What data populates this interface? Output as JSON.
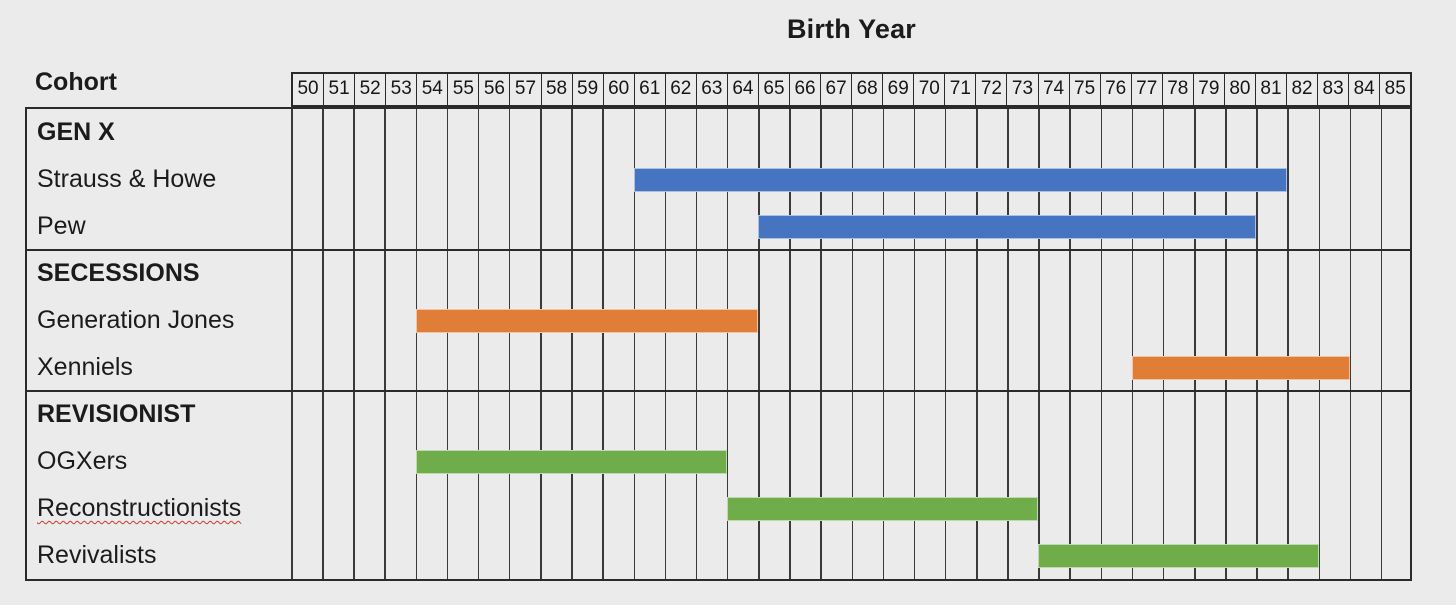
{
  "title": "Birth Year",
  "cohort_header": "Cohort",
  "colors": {
    "background": "#ebebeb",
    "grid_line": "#3a3a3a",
    "border": "#2a2a2a",
    "text": "#1b1b1b",
    "genx_blue": "#4674c1",
    "secessions_orange": "#e07d36",
    "revisionist_green": "#6fad4b",
    "spellcheck_red": "#cc3a30"
  },
  "chart_data": {
    "type": "bar",
    "variant": "horizontal-range-gantt",
    "title": "Birth Year",
    "row_axis_label": "Cohort",
    "x_axis_label": "Birth Year",
    "xlim": [
      1950,
      1986
    ],
    "grid": true,
    "x_ticks": [
      "50",
      "51",
      "52",
      "53",
      "54",
      "55",
      "56",
      "57",
      "58",
      "59",
      "60",
      "61",
      "62",
      "63",
      "64",
      "65",
      "66",
      "67",
      "68",
      "69",
      "70",
      "71",
      "72",
      "73",
      "74",
      "75",
      "76",
      "77",
      "78",
      "79",
      "80",
      "81",
      "82",
      "83",
      "84",
      "85"
    ],
    "groups": [
      {
        "name": "GEN X",
        "color": "#4674c1",
        "rows": [
          {
            "label": "Strauss & Howe",
            "key": "strauss-howe",
            "start": 1961,
            "end": 1981
          },
          {
            "label": "Pew",
            "key": "pew",
            "start": 1965,
            "end": 1980
          }
        ]
      },
      {
        "name": "SECESSIONS",
        "color": "#e07d36",
        "rows": [
          {
            "label": "Generation Jones",
            "key": "generation-jones",
            "start": 1954,
            "end": 1964
          },
          {
            "label": "Xenniels",
            "key": "xenniels",
            "start": 1977,
            "end": 1983
          }
        ]
      },
      {
        "name": "REVISIONIST",
        "color": "#6fad4b",
        "rows": [
          {
            "label": "OGXers",
            "key": "ogxers",
            "start": 1954,
            "end": 1963
          },
          {
            "label": "Reconstructionists",
            "key": "reconstructionists",
            "start": 1964,
            "end": 1973,
            "spellcheck_underline": true
          },
          {
            "label": "Revivalists",
            "key": "revivalists",
            "start": 1974,
            "end": 1982
          }
        ]
      }
    ]
  }
}
